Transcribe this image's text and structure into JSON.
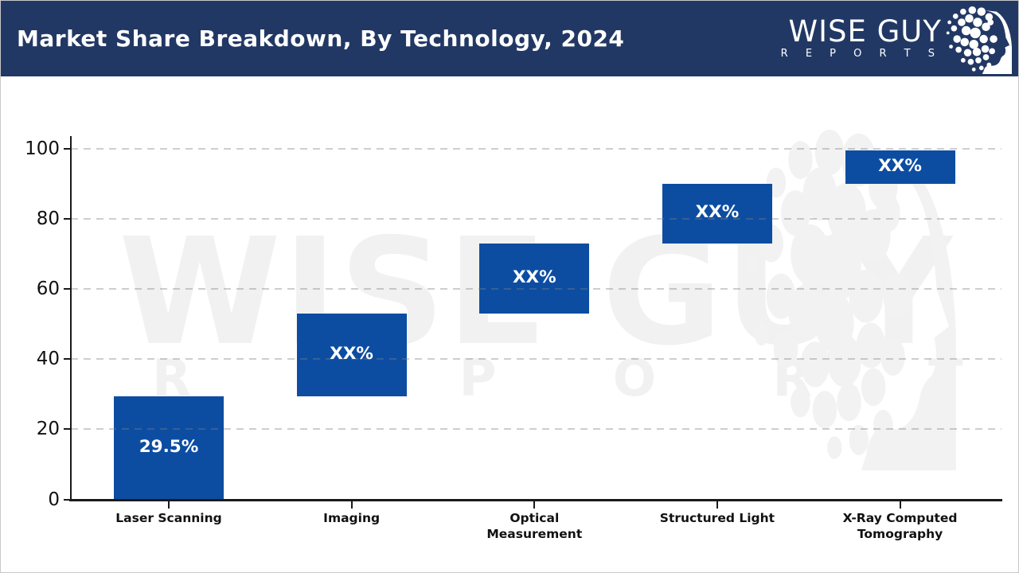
{
  "header": {
    "title": "Market Share Breakdown, By Technology, 2024",
    "logo": {
      "line1": "WISE GUY",
      "line2": "R E P O R T S"
    }
  },
  "watermark": {
    "line1": "WISE GUY",
    "line2": "R E P O R T S"
  },
  "colors": {
    "header_bg": "#223864",
    "bar": "#0c4da2",
    "bar_label_text": "#ffffff",
    "axis": "#1a1a1a",
    "gridline": "#9f9f9f",
    "watermark": "#f1f1f1",
    "page_border": "#c8c8c8"
  },
  "chart_data": {
    "type": "bar",
    "subtype": "waterfall",
    "title": "Market Share Breakdown, By Technology, 2024",
    "categories": [
      "Laser Scanning",
      "Imaging",
      "Optical Measurement",
      "Structured Light",
      "X-Ray Computed Tomography"
    ],
    "bars": [
      {
        "category": "Laser Scanning",
        "category_lines": [
          "Laser Scanning"
        ],
        "start": 0,
        "end": 29.5,
        "label": "29.5%"
      },
      {
        "category": "Imaging",
        "category_lines": [
          "Imaging"
        ],
        "start": 29.5,
        "end": 53,
        "label": "XX%"
      },
      {
        "category": "Optical Measurement",
        "category_lines": [
          "Optical",
          "Measurement"
        ],
        "start": 53,
        "end": 73,
        "label": "XX%"
      },
      {
        "category": "Structured Light",
        "category_lines": [
          "Structured Light"
        ],
        "start": 73,
        "end": 90,
        "label": "XX%"
      },
      {
        "category": "X-Ray Computed Tomography",
        "category_lines": [
          "X-Ray Computed",
          "Tomography"
        ],
        "start": 90,
        "end": 99.5,
        "label": "XX%"
      }
    ],
    "ylim": [
      0,
      100
    ],
    "yticks": [
      0,
      20,
      40,
      60,
      80,
      100
    ],
    "xlabel": "",
    "ylabel": "",
    "grid": "horizontal-dashed",
    "legend": "none"
  }
}
